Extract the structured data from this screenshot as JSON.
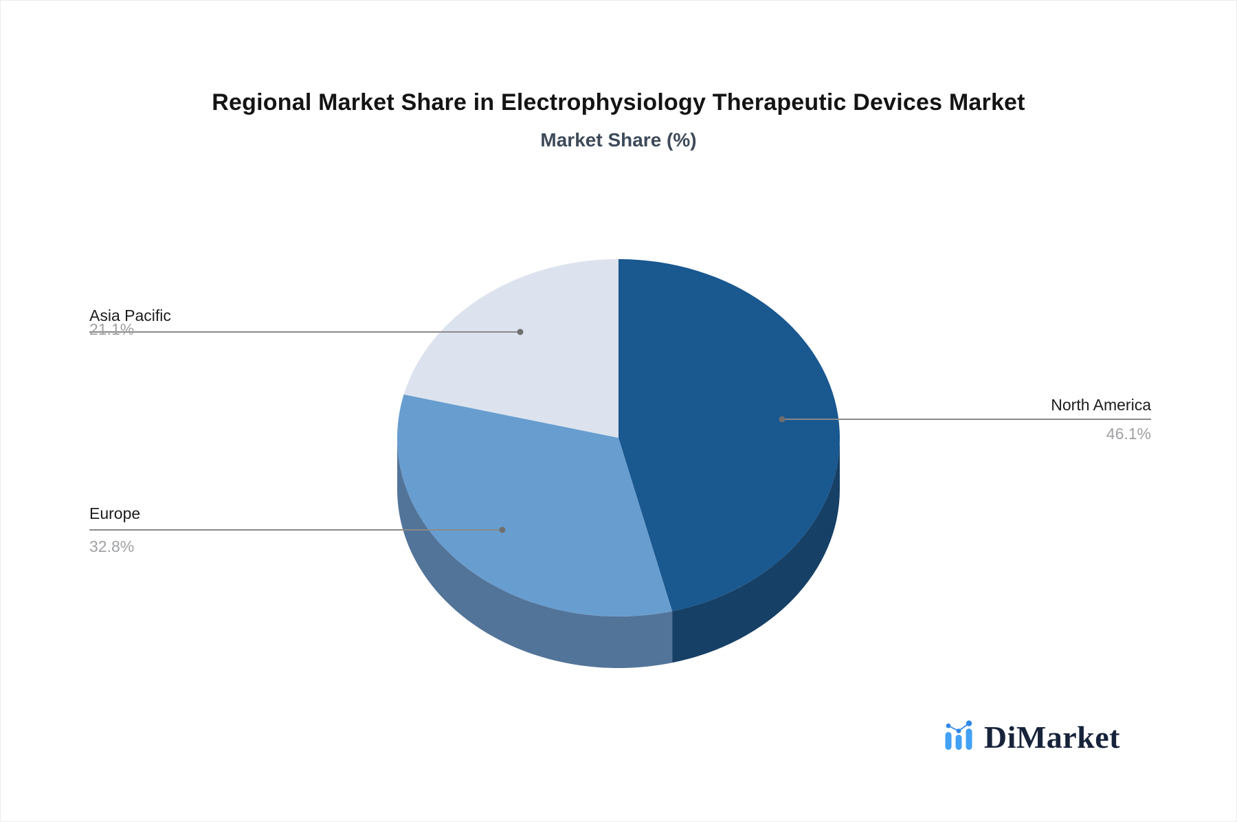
{
  "title": "Regional Market Share in Electrophysiology Therapeutic Devices Market",
  "subtitle": "Market Share (%)",
  "brand": {
    "name": "DiMarket"
  },
  "colors": {
    "title_text": "#141414",
    "subtitle_text": "#3e4a59",
    "label_text": "#1c1c1c",
    "percent_text": "#9ea0a3",
    "leader_line": "#898989",
    "leader_dot": "#6f6f6f",
    "brand_text": "#16233a",
    "brand_blue": "#42a0f5"
  },
  "chart_data": {
    "type": "pie",
    "style": "3d",
    "title": "Regional Market Share in Electrophysiology Therapeutic Devices Market",
    "subtitle": "Market Share (%)",
    "unit": "%",
    "start_angle_deg": 0,
    "direction": "clockwise",
    "legend": "none",
    "slices": [
      {
        "label": "North America",
        "value": 46.1,
        "display": "46.1%",
        "color": "#1a5890",
        "side_color": "#164066",
        "label_side": "right"
      },
      {
        "label": "Europe",
        "value": 32.8,
        "display": "32.8%",
        "color": "#689dcf",
        "side_color": "#537499",
        "label_side": "left"
      },
      {
        "label": "Asia Pacific",
        "value": 21.1,
        "display": "21.1%",
        "color": "#dce3ee",
        "side_color": "#c9d2e0",
        "label_side": "left"
      }
    ]
  }
}
